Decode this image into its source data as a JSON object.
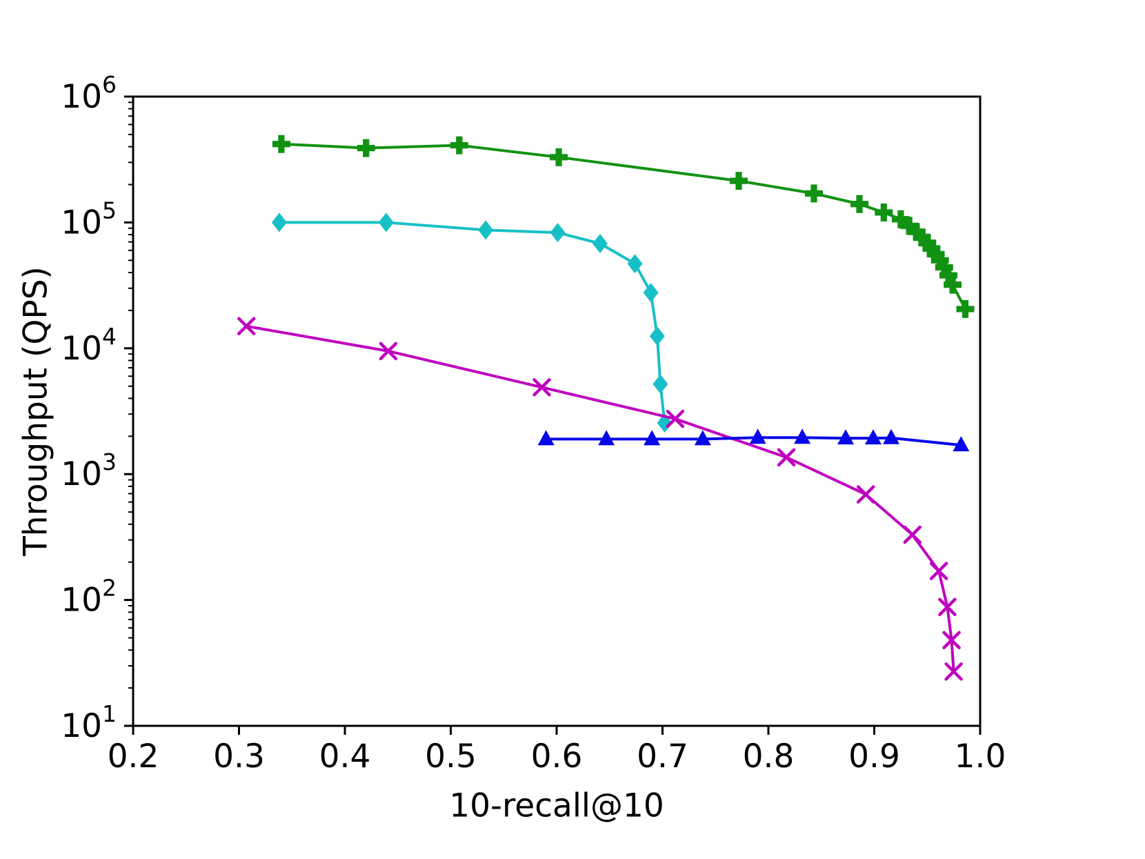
{
  "chart_data": {
    "type": "line",
    "title": "",
    "xlabel": "10-recall@10",
    "ylabel": "Throughput (QPS)",
    "xlim": [
      0.2,
      1.0
    ],
    "xticks": [
      0.2,
      0.3,
      0.4,
      0.5,
      0.6,
      0.7,
      0.8,
      0.9,
      1.0
    ],
    "xtick_decimals": 1,
    "yscale": "log",
    "ylim": [
      10,
      1000000
    ],
    "ytick_exponents": [
      1,
      2,
      3,
      4,
      5,
      6
    ],
    "grid": false,
    "legend": "none",
    "series": [
      {
        "name": "green-plus-series",
        "color": "#129212",
        "marker": "plus",
        "points": [
          [
            0.34,
            420000
          ],
          [
            0.42,
            390000
          ],
          [
            0.508,
            410000
          ],
          [
            0.602,
            330000
          ],
          [
            0.772,
            214000
          ],
          [
            0.843,
            170000
          ],
          [
            0.886,
            140000
          ],
          [
            0.909,
            120000
          ],
          [
            0.925,
            106000
          ],
          [
            0.933,
            94000
          ],
          [
            0.94,
            84000
          ],
          [
            0.945,
            76000
          ],
          [
            0.95,
            69000
          ],
          [
            0.954,
            62000
          ],
          [
            0.958,
            56000
          ],
          [
            0.962,
            50000
          ],
          [
            0.966,
            44000
          ],
          [
            0.97,
            38000
          ],
          [
            0.974,
            32000
          ],
          [
            0.986,
            20500
          ]
        ]
      },
      {
        "name": "cyan-diamond-series",
        "color": "#17c0c6",
        "marker": "diamond",
        "points": [
          [
            0.338,
            100000
          ],
          [
            0.439,
            100000
          ],
          [
            0.533,
            87000
          ],
          [
            0.601,
            83000
          ],
          [
            0.641,
            68000
          ],
          [
            0.674,
            47000
          ],
          [
            0.689,
            27700
          ],
          [
            0.695,
            12500
          ],
          [
            0.698,
            5200
          ],
          [
            0.702,
            2550
          ]
        ]
      },
      {
        "name": "magenta-x-series",
        "color": "#bf00bf",
        "marker": "x",
        "points": [
          [
            0.307,
            15000
          ],
          [
            0.441,
            9500
          ],
          [
            0.586,
            4900
          ],
          [
            0.712,
            2750
          ],
          [
            0.817,
            1360
          ],
          [
            0.892,
            690
          ],
          [
            0.936,
            330
          ],
          [
            0.961,
            170
          ],
          [
            0.969,
            88
          ],
          [
            0.973,
            48
          ],
          [
            0.975,
            27
          ]
        ]
      },
      {
        "name": "blue-triangle-series",
        "color": "#0707e8",
        "marker": "triangle",
        "points": [
          [
            0.59,
            1900
          ],
          [
            0.647,
            1900
          ],
          [
            0.69,
            1900
          ],
          [
            0.738,
            1900
          ],
          [
            0.79,
            1950
          ],
          [
            0.832,
            1950
          ],
          [
            0.873,
            1930
          ],
          [
            0.899,
            1930
          ],
          [
            0.916,
            1940
          ],
          [
            0.982,
            1700
          ]
        ]
      }
    ]
  }
}
